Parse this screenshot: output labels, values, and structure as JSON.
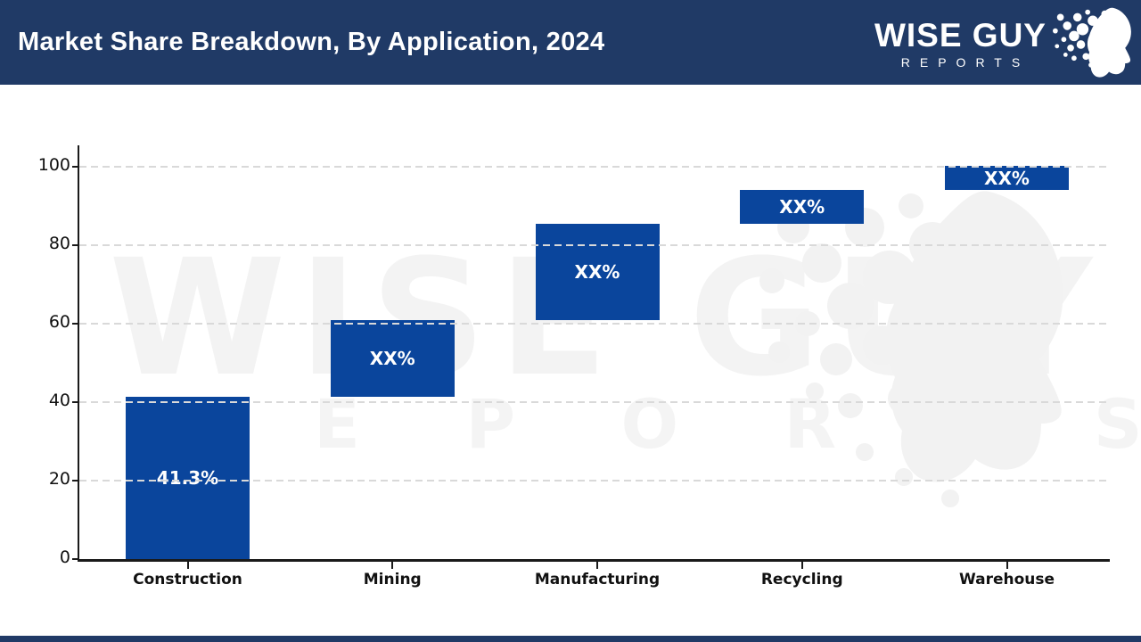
{
  "header": {
    "title": "Market Share Breakdown, By Application, 2024",
    "bg_color": "#203a66",
    "logo": {
      "line1": "WISE GUY",
      "line2": "REPORTS"
    }
  },
  "watermark": {
    "line1": "WISE GUY",
    "line2": "R E P O R T S"
  },
  "chart_data": {
    "type": "bar",
    "subtype": "waterfall",
    "title": "Market Share Breakdown, By Application, 2024",
    "categories": [
      "Construction",
      "Mining",
      "Manufacturing",
      "Recycling",
      "Warehouse"
    ],
    "segments": [
      {
        "category": "Construction",
        "start": 0,
        "end": 41.3,
        "label": "41.3%"
      },
      {
        "category": "Mining",
        "start": 41.3,
        "end": 61.0,
        "label": "XX%"
      },
      {
        "category": "Manufacturing",
        "start": 61.0,
        "end": 85.5,
        "label": "XX%"
      },
      {
        "category": "Recycling",
        "start": 85.5,
        "end": 94.0,
        "label": "XX%"
      },
      {
        "category": "Warehouse",
        "start": 94.0,
        "end": 100.3,
        "label": "XX%"
      }
    ],
    "yticks": [
      0,
      20,
      40,
      60,
      80,
      100
    ],
    "ylim": [
      0,
      105
    ],
    "xlabel": "",
    "ylabel": "",
    "grid": "horizontal-dashed",
    "legend": "none",
    "bar_color": "#0a459c",
    "bar_label_color": "#ffffff",
    "gridline_color": "#d9d9d9",
    "axis_color": "#1a1a1a"
  }
}
